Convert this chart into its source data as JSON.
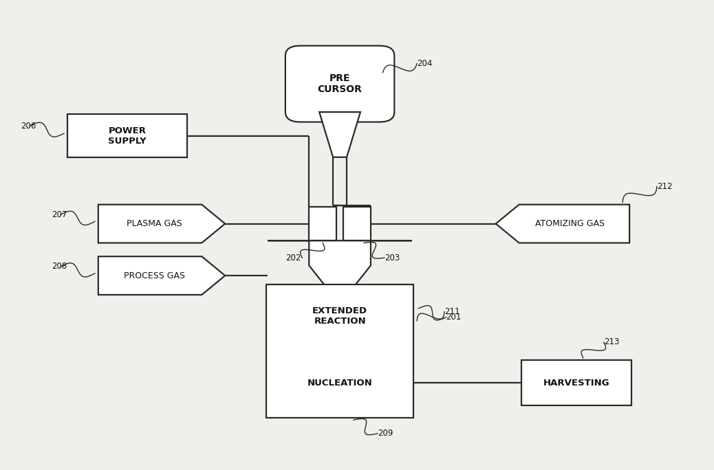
{
  "bg_color": "#f0efeb",
  "line_color": "#2a2a2a",
  "box_color": "#ffffff",
  "text_color": "#111111",
  "lw": 1.6,
  "figsize": [
    10.38,
    6.84
  ],
  "dpi": 100,
  "labels": {
    "precursor": "PRE\nCURSOR",
    "power_supply": "POWER\nSUPPLY",
    "plasma_gas": "PLASMA GAS",
    "process_gas": "PROCESS GAS",
    "atomizing_gas": "ATOMIZING GAS",
    "extended_reaction": "EXTENDED\nREACTION",
    "nucleation": "NUCLEATION",
    "harvesting": "HARVESTING"
  }
}
